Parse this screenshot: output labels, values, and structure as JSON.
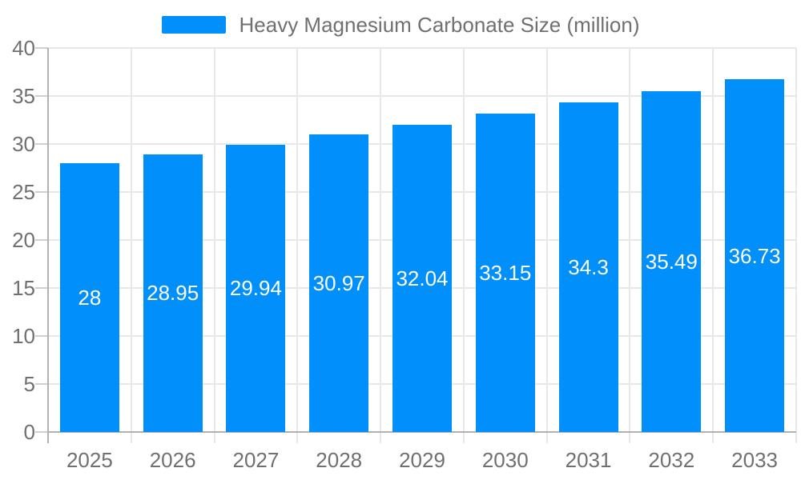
{
  "chart_data": {
    "type": "bar",
    "title": "Heavy Magnesium Carbonate Size (million)",
    "legend_position": "top",
    "categories": [
      "2025",
      "2026",
      "2027",
      "2028",
      "2029",
      "2030",
      "2031",
      "2032",
      "2033"
    ],
    "series": [
      {
        "name": "Heavy Magnesium Carbonate Size (million)",
        "values": [
          28,
          28.95,
          29.94,
          30.97,
          32.04,
          33.15,
          34.3,
          35.49,
          36.73
        ]
      }
    ],
    "value_labels": [
      "28",
      "28.95",
      "29.94",
      "30.97",
      "32.04",
      "33.15",
      "34.3",
      "35.49",
      "36.73"
    ],
    "xlabel": "",
    "ylabel": "",
    "ylim": [
      0,
      40
    ],
    "ytick_step": 5,
    "ytick_labels": [
      "0",
      "5",
      "10",
      "15",
      "20",
      "25",
      "30",
      "35",
      "40"
    ],
    "grid": true,
    "colors": {
      "bar": "#008FFB",
      "bar_label": "#ffffff",
      "axis_text": "#707070",
      "grid_line": "#e8e8e8",
      "axis_line": "#b2b2b2",
      "tick": "#cfcfcf",
      "background": "#ffffff"
    }
  }
}
